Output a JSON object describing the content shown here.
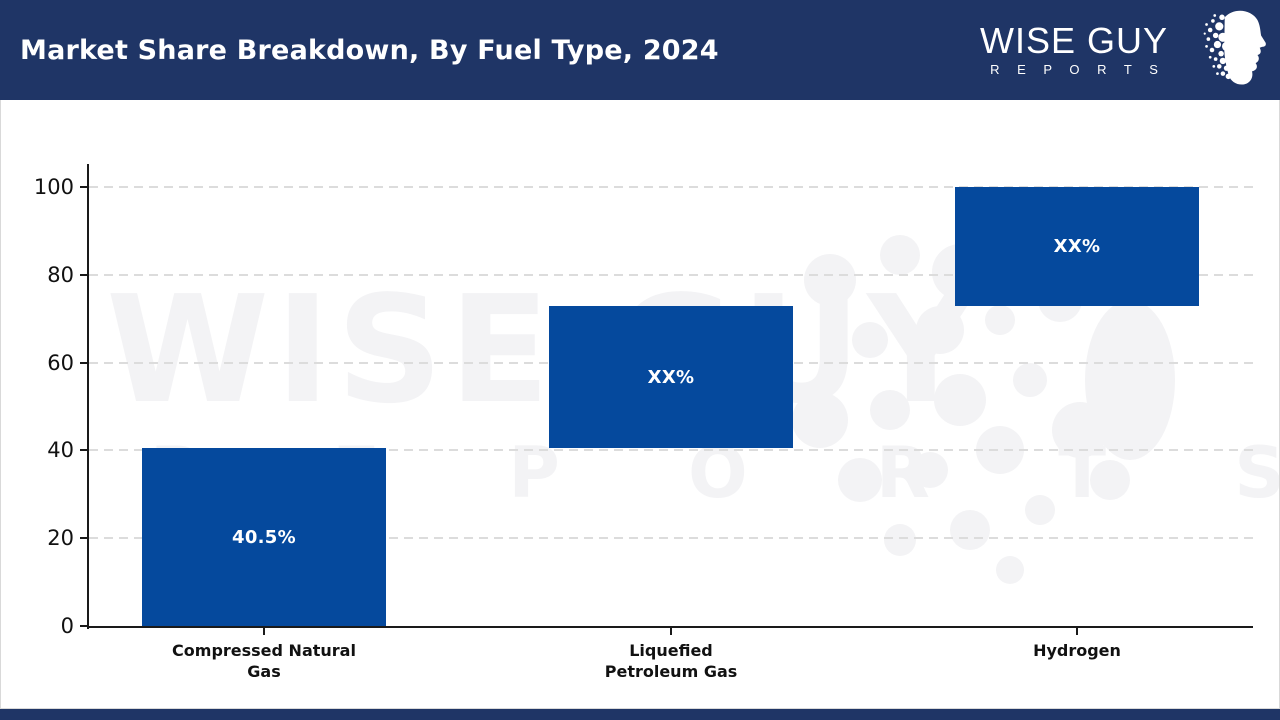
{
  "header": {
    "title": "Market Share Breakdown, By Fuel Type, 2024",
    "logo": {
      "line1": "WISE GUY",
      "line2": "R E P O R T S",
      "head_icon": "dotted-head-profile-icon"
    }
  },
  "watermark": {
    "line1": "WISE GUY",
    "line2": "R E P O R T S"
  },
  "chart_data": {
    "type": "bar",
    "variant": "floating-waterfall",
    "title": "Market Share Breakdown, By Fuel Type, 2024",
    "categories": [
      "Compressed Natural\nGas",
      "Liquefied\nPetroleum Gas",
      "Hydrogen"
    ],
    "segments": [
      {
        "category": "Compressed Natural Gas",
        "start": 0,
        "end": 40.5,
        "label": "40.5%"
      },
      {
        "category": "Liquefied Petroleum Gas",
        "start": 40.5,
        "end": 72.9,
        "label": "XX%"
      },
      {
        "category": "Hydrogen",
        "start": 72.9,
        "end": 100,
        "label": "XX%"
      }
    ],
    "yticks": [
      0,
      20,
      40,
      60,
      80,
      100
    ],
    "ylim": [
      0,
      105
    ],
    "xlabel": "",
    "ylabel": "",
    "grid": "horizontal-dashed",
    "legend": null
  },
  "colors": {
    "header_bg": "#1f3566",
    "footer_bg": "#1f3566",
    "bar": "#05499d",
    "bar_label": "#ffffff",
    "grid": "#dcdcdc",
    "axis": "#1a1a1a",
    "watermark": "#f3f3f5",
    "frame_border": "#d9d9d9",
    "title_text": "#ffffff"
  }
}
